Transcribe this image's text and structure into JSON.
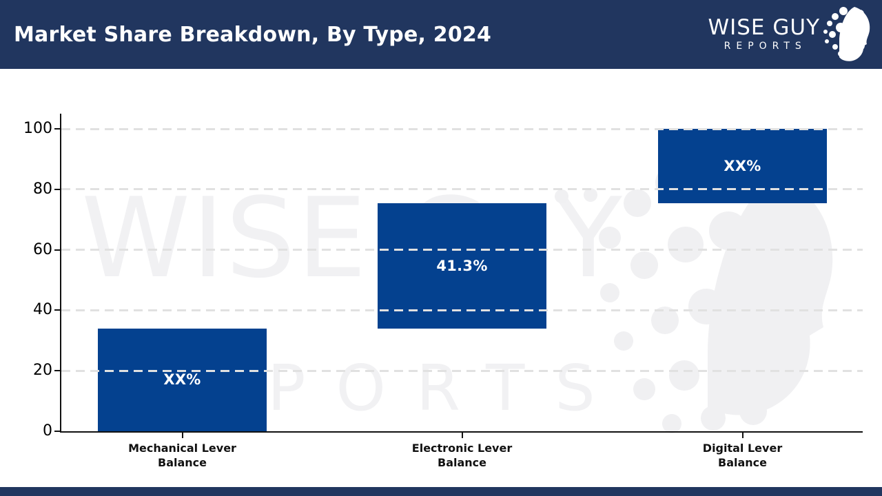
{
  "header": {
    "title": "Market Share Breakdown, By Type, 2024",
    "logo": {
      "name": "WISE GUY",
      "sub": "REPORTS"
    }
  },
  "watermark": {
    "word_left": "WISE G",
    "word_right": "Y",
    "line2": "REPORTS"
  },
  "chart_data": {
    "type": "bar",
    "variant": "floating cumulative range bars (waterfall-style market share)",
    "title": "Market Share Breakdown, By Type, 2024",
    "categories": [
      "Mechanical Lever\nBalance",
      "Electronic Lever\nBalance",
      "Digital Lever\nBalance"
    ],
    "bars": [
      {
        "start": 0,
        "end": 34,
        "label": "XX%"
      },
      {
        "start": 34,
        "end": 75.3,
        "label": "41.3%"
      },
      {
        "start": 75.3,
        "end": 100,
        "label": "XX%"
      }
    ],
    "segment_heights": [
      34,
      41.3,
      24.7
    ],
    "yticks": [
      0,
      20,
      40,
      60,
      80,
      100
    ],
    "ylim": [
      0,
      105
    ],
    "xlabel": "",
    "ylabel": "",
    "grid": "horizontal dashed, drawn over bars",
    "legend": null,
    "bar_color": "#04418F",
    "bar_label_color": "#ffffff",
    "header_color": "#21365F"
  }
}
